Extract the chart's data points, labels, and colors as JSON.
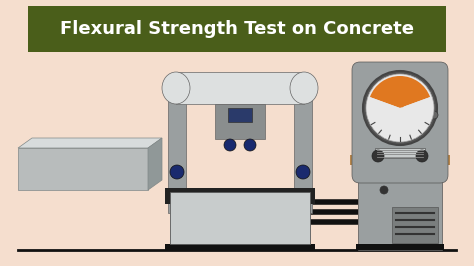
{
  "bg_color": "#f5dece",
  "title_text": "Flexural Strength Test on Concrete",
  "title_bg": "#4a5e1a",
  "title_text_color": "#ffffff",
  "concrete_face": "#b8bcbc",
  "concrete_top": "#d8dcdc",
  "concrete_side": "#909898",
  "machine_gray": "#9a9fa0",
  "machine_light": "#c8cccc",
  "machine_lighter": "#dde0e0",
  "machine_dark": "#222222",
  "blue_knob": "#1a2a6e",
  "orange_gauge": "#e07820",
  "wood_color": "#b8864a",
  "bar_color": "#111111",
  "gauge_bg": "#888c8c",
  "gauge_face_color": "#e8e8e8"
}
